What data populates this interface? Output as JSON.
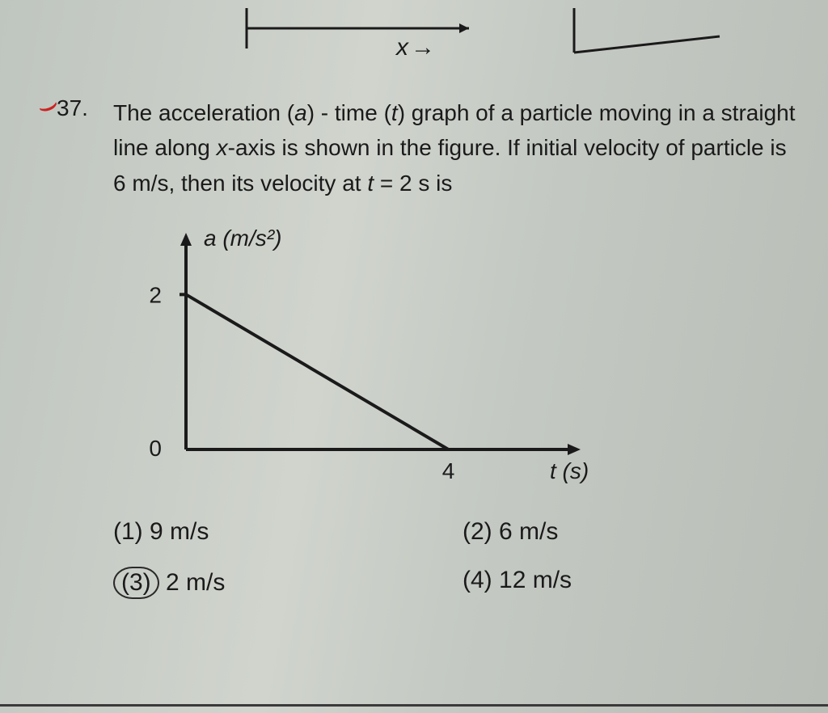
{
  "previous_figure": {
    "x_label": "x",
    "arrow_label": "→",
    "stroke": "#1a1a1a",
    "stroke_width": 3
  },
  "question": {
    "number": "37.",
    "text_parts": {
      "p1": "The acceleration (",
      "a": "a",
      "p2": ") - time (",
      "t": "t",
      "p3": ") graph of a particle moving in a straight line along ",
      "xaxis": "x",
      "p4": "-axis is shown in the figure. If initial velocity of particle is 6 m/s, then its velocity at ",
      "tvar": "t",
      "p5": " = 2 s is"
    }
  },
  "graph": {
    "type": "line",
    "y_label": "a (m/s²)",
    "x_label": "t (s)",
    "y_tick_label": "2",
    "y_tick_value": 2,
    "x_tick_label": "4",
    "x_tick_value": 4,
    "origin_label": "0",
    "xlim": [
      0,
      5.3
    ],
    "ylim": [
      0,
      2.4
    ],
    "line_points": [
      [
        0,
        2
      ],
      [
        4,
        0
      ]
    ],
    "stroke": "#1a1a1a",
    "stroke_width": 4,
    "axis_stroke_width": 4,
    "label_fontsize": 28,
    "tick_fontsize": 28,
    "background": "transparent"
  },
  "options": [
    {
      "num": "(1)",
      "text": "9 m/s",
      "circled": false
    },
    {
      "num": "(2)",
      "text": "6 m/s",
      "circled": false
    },
    {
      "num": "(3)",
      "text": "2 m/s",
      "circled": true
    },
    {
      "num": "(4)",
      "text": "12 m/s",
      "circled": false
    }
  ],
  "colors": {
    "text": "#1a1a1a",
    "page_bg": "#c8ccc7",
    "pen": "#7a2a2a"
  }
}
